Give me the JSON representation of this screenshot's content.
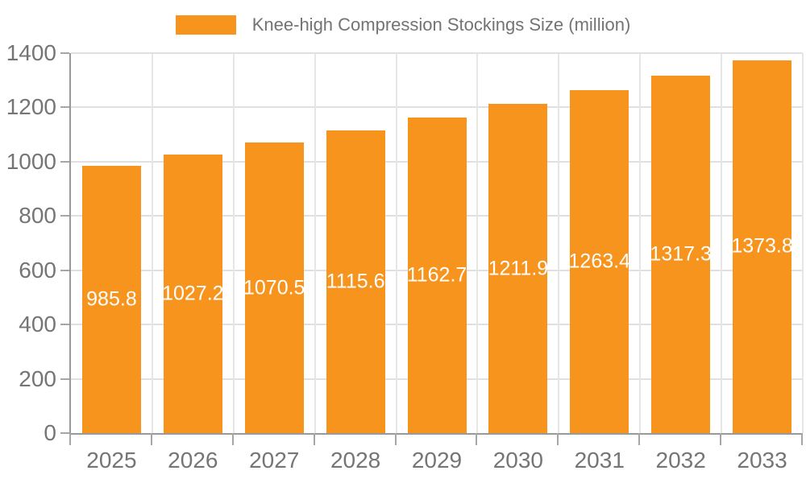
{
  "legend": {
    "label": "Knee-high Compression Stockings Size (million)"
  },
  "colors": {
    "bar": "#F7941E",
    "axis_line": "#999999",
    "tick": "#A6A6A6",
    "gridline_h": "#E0E0E0",
    "gridline_v": "#E6E6E6",
    "axis_label": "#757575",
    "legend_text": "#737373",
    "value_label": "#FFFFFF",
    "background": "#FFFFFF"
  },
  "chart_data": {
    "type": "bar",
    "categories": [
      "2025",
      "2026",
      "2027",
      "2028",
      "2029",
      "2030",
      "2031",
      "2032",
      "2033"
    ],
    "values": [
      985.8,
      1027.2,
      1070.5,
      1115.6,
      1162.7,
      1211.9,
      1263.4,
      1317.3,
      1373.8
    ],
    "title": "Knee-high Compression Stockings Size (million)",
    "xlabel": "",
    "ylabel": "",
    "ylim": [
      0,
      1400
    ],
    "ytick_step": 200,
    "yticks": [
      0,
      200,
      400,
      600,
      800,
      1000,
      1200,
      1400
    ],
    "grid": true,
    "legend_position": "top",
    "bar_label_position": "inside-center",
    "series_name": "Knee-high Compression Stockings Size (million)"
  }
}
